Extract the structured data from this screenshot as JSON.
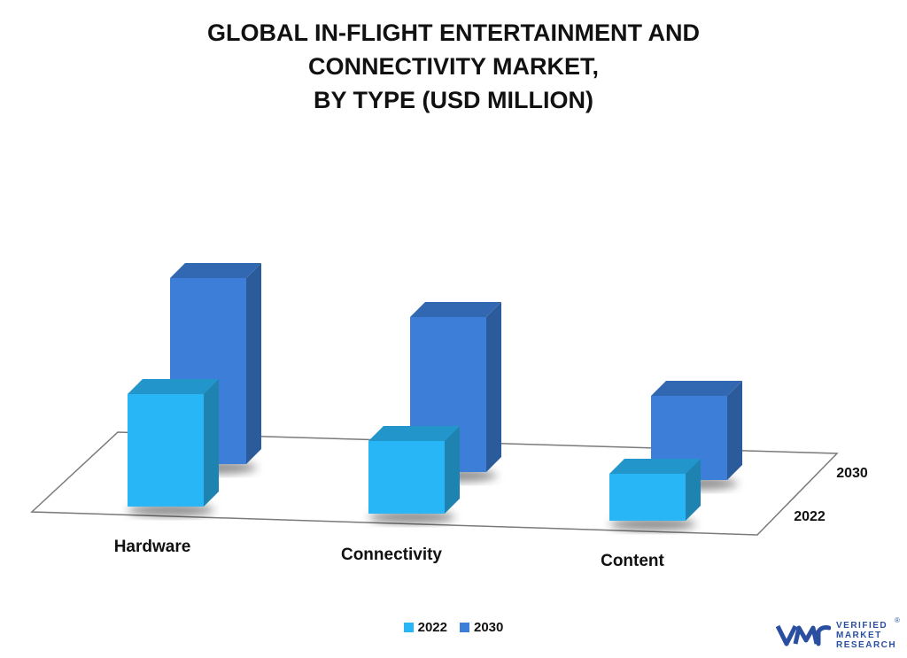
{
  "title_lines": [
    "GLOBAL IN-FLIGHT ENTERTAINMENT AND",
    "CONNECTIVITY MARKET,",
    "BY TYPE (USD MILLION)"
  ],
  "chart_data": {
    "type": "bar",
    "categories": [
      "Hardware",
      "Connectivity",
      "Content"
    ],
    "series": [
      {
        "name": "2022",
        "values": [
          127,
          82,
          53
        ],
        "color": "#29b6f6"
      },
      {
        "name": "2030",
        "values": [
          210,
          175,
          95
        ],
        "color": "#3d7fd8"
      }
    ],
    "depth_labels": [
      "2030",
      "2022"
    ],
    "ylim": [
      0,
      230
    ],
    "grid": false,
    "legend_position": "bottom-center",
    "three_d": true
  },
  "legend": [
    {
      "label": "2022",
      "color": "#29b6f6"
    },
    {
      "label": "2030",
      "color": "#3d7fd8"
    }
  ],
  "logo": {
    "icon": "vmr-logo-icon",
    "lines": [
      "VERIFIED",
      "MARKET",
      "RESEARCH"
    ],
    "mark": "®"
  }
}
